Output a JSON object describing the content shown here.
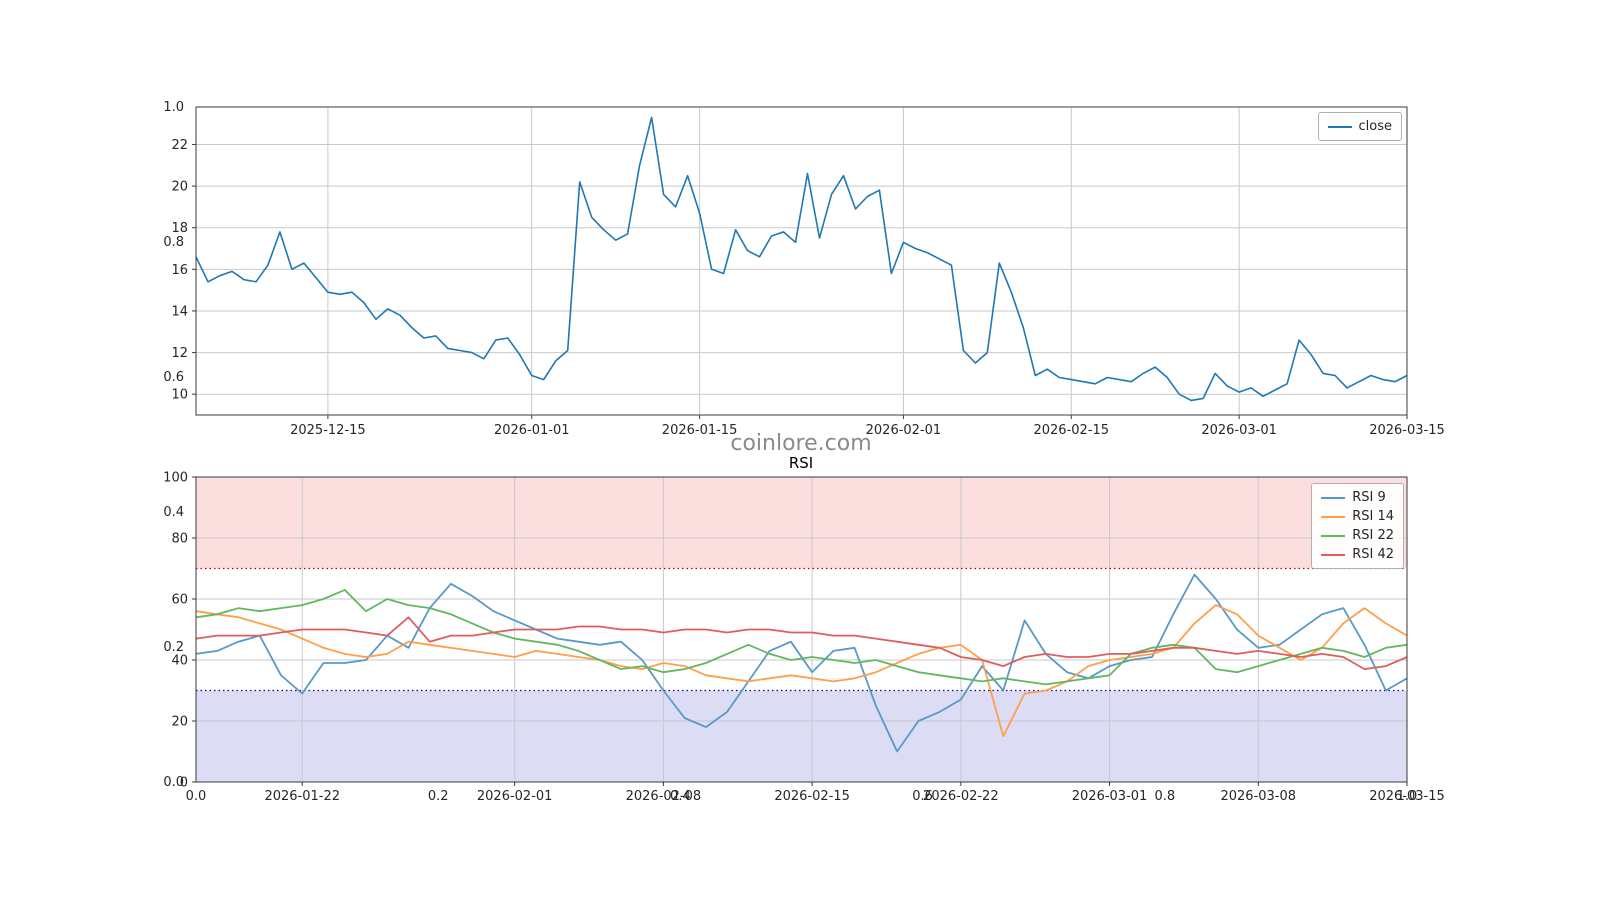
{
  "watermark": "coinlore.com",
  "phantom_axis": {
    "y_labels": [
      "1.0",
      "0.8",
      "0.6",
      "0.4",
      "0.2",
      "0.0"
    ],
    "x_labels": [
      "0.0",
      "0.2",
      "0.4",
      "0.6",
      "0.8",
      "1.0"
    ]
  },
  "chart_data": [
    {
      "type": "line",
      "title": "",
      "x_start_date": "2025-12-04",
      "x_tick_labels": [
        "2025-12-15",
        "2026-01-01",
        "2026-01-15",
        "2026-02-01",
        "2026-02-15",
        "2026-03-01",
        "2026-03-15"
      ],
      "x_tick_positions": [
        11,
        28,
        42,
        59,
        73,
        87,
        101
      ],
      "y_ticks": [
        10,
        12,
        14,
        16,
        18,
        20,
        22
      ],
      "ylim": [
        9.0,
        23.8
      ],
      "grid": true,
      "legend_position": "upper right",
      "series": [
        {
          "name": "close",
          "color": "#1f77b4",
          "values": [
            16.6,
            15.4,
            15.7,
            15.9,
            15.5,
            15.4,
            16.2,
            17.8,
            16.0,
            16.3,
            15.6,
            14.9,
            14.8,
            14.9,
            14.4,
            13.6,
            14.1,
            13.8,
            13.2,
            12.7,
            12.8,
            12.2,
            12.1,
            12.0,
            11.7,
            12.6,
            12.7,
            11.9,
            10.9,
            10.7,
            11.6,
            12.1,
            20.2,
            18.5,
            17.9,
            17.4,
            17.7,
            21.0,
            23.3,
            19.6,
            19.0,
            20.5,
            18.7,
            16.0,
            15.8,
            17.9,
            16.9,
            16.6,
            17.6,
            17.8,
            17.3,
            20.6,
            17.5,
            19.6,
            20.5,
            18.9,
            19.5,
            19.8,
            15.8,
            17.3,
            17.0,
            16.8,
            16.5,
            16.2,
            12.1,
            11.5,
            12.0,
            16.3,
            14.9,
            13.2,
            10.9,
            11.2,
            10.8,
            10.7,
            10.6,
            10.5,
            10.8,
            10.7,
            10.6,
            11.0,
            11.3,
            10.8,
            10.0,
            9.7,
            9.8,
            11.0,
            10.4,
            10.1,
            10.3,
            9.9,
            10.2,
            10.5,
            12.6,
            11.9,
            11.0,
            10.9,
            10.3,
            10.6,
            10.9,
            10.7,
            10.6,
            10.9
          ]
        }
      ]
    },
    {
      "type": "line",
      "title": "RSI",
      "x_start_date": "2026-01-17",
      "x_tick_labels": [
        "2026-01-22",
        "2026-02-01",
        "2026-02-08",
        "2026-02-15",
        "2026-02-22",
        "2026-03-01",
        "2026-03-08",
        "2026-03-15"
      ],
      "x_tick_positions": [
        5,
        15,
        22,
        29,
        36,
        43,
        50,
        57
      ],
      "y_ticks": [
        0,
        20,
        40,
        60,
        80,
        100
      ],
      "ylim": [
        0,
        100
      ],
      "grid": true,
      "legend_position": "upper right",
      "overbought_level": 70,
      "oversold_level": 30,
      "band_upper_color": "#fbdfdf",
      "band_lower_color": "#dcdcf4",
      "dotted_upper_color": "#c00000",
      "dotted_lower_color": "#0000c0",
      "series": [
        {
          "name": "RSI 9",
          "color": "#5799c7",
          "values": [
            42,
            43,
            46,
            48,
            35,
            29,
            39,
            39,
            40,
            48,
            44,
            57,
            65,
            61,
            56,
            53,
            50,
            47,
            46,
            45,
            46,
            40,
            30,
            21,
            18,
            23,
            33,
            43,
            46,
            36,
            43,
            44,
            25,
            10,
            20,
            23,
            27,
            38,
            30,
            53,
            42,
            36,
            34,
            38,
            40,
            41,
            55,
            68,
            60,
            50,
            44,
            45,
            50,
            55,
            57,
            45,
            30,
            34
          ]
        },
        {
          "name": "RSI 14",
          "color": "#ff9f4a",
          "values": [
            56,
            55,
            54,
            52,
            50,
            47,
            44,
            42,
            41,
            42,
            46,
            45,
            44,
            43,
            42,
            41,
            43,
            42,
            41,
            40,
            38,
            37,
            39,
            38,
            35,
            34,
            33,
            34,
            35,
            34,
            33,
            34,
            36,
            39,
            42,
            44,
            45,
            40,
            15,
            29,
            30,
            33,
            38,
            40,
            41,
            42,
            44,
            52,
            58,
            55,
            48,
            44,
            40,
            44,
            52,
            57,
            52,
            48
          ]
        },
        {
          "name": "RSI 22",
          "color": "#61b861",
          "values": [
            54,
            55,
            57,
            56,
            57,
            58,
            60,
            63,
            56,
            60,
            58,
            57,
            55,
            52,
            49,
            47,
            46,
            45,
            43,
            40,
            37,
            38,
            36,
            37,
            39,
            42,
            45,
            42,
            40,
            41,
            40,
            39,
            40,
            38,
            36,
            35,
            34,
            33,
            34,
            33,
            32,
            33,
            34,
            35,
            42,
            44,
            45,
            44,
            37,
            36,
            38,
            40,
            42,
            44,
            43,
            41,
            44,
            45
          ]
        },
        {
          "name": "RSI 42",
          "color": "#e05d5e",
          "values": [
            47,
            48,
            48,
            48,
            49,
            50,
            50,
            50,
            49,
            48,
            54,
            46,
            48,
            48,
            49,
            50,
            50,
            50,
            51,
            51,
            50,
            50,
            49,
            50,
            50,
            49,
            50,
            50,
            49,
            49,
            48,
            48,
            47,
            46,
            45,
            44,
            41,
            40,
            38,
            41,
            42,
            41,
            41,
            42,
            42,
            43,
            44,
            44,
            43,
            42,
            43,
            42,
            41,
            42,
            41,
            37,
            38,
            41
          ]
        }
      ]
    }
  ]
}
